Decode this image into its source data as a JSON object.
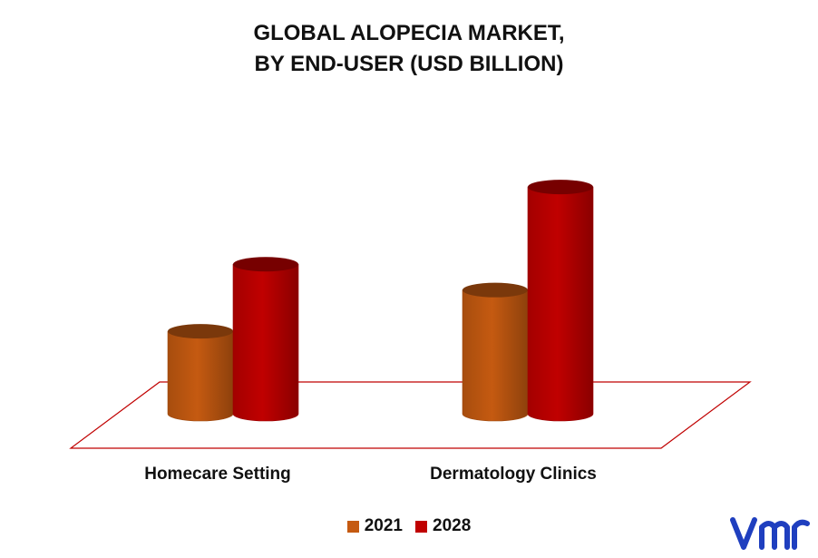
{
  "chart_data": {
    "type": "bar",
    "title_lines": [
      "GLOBAL ALOPECIA MARKET,",
      "BY END-USER (USD BILLION)"
    ],
    "categories": [
      "Homecare Setting",
      "Dermatology Clinics"
    ],
    "series": [
      {
        "name": "2021",
        "color": "#c55a11",
        "values": [
          1.6,
          2.4
        ]
      },
      {
        "name": "2028",
        "color": "#c00000",
        "values": [
          2.9,
          4.4
        ]
      }
    ],
    "ylim": [
      0,
      5
    ],
    "grid": false,
    "legend_position": "bottom",
    "style": "3d-cylinder"
  },
  "logo": {
    "name": "vmr-logo",
    "color": "#1f3fbf"
  }
}
